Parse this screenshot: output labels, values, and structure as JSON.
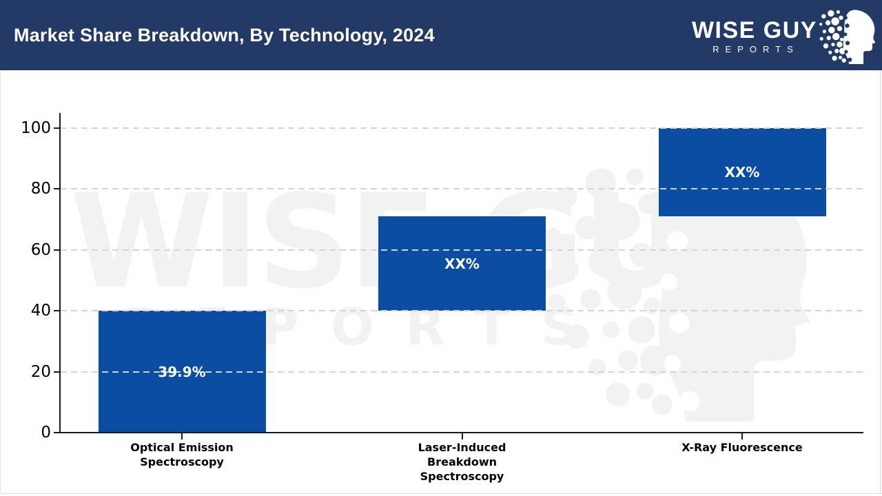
{
  "header": {
    "title": "Market Share Breakdown, By Technology, 2024",
    "logo": {
      "name": "WISE GUY",
      "sub": "REPORTS"
    }
  },
  "watermark": {
    "name": "WISE GUY",
    "sub": "REPORTS"
  },
  "chart_data": {
    "type": "bar",
    "subtype": "cumulative-floating-bars",
    "title": "Market Share Breakdown, By Technology, 2024",
    "categories": [
      "Optical Emission Spectroscopy",
      "Laser-Induced Breakdown Spectroscopy",
      "X-Ray Fluorescence"
    ],
    "category_lines": [
      [
        "Optical Emission",
        "Spectroscopy"
      ],
      [
        "Laser-Induced",
        "Breakdown",
        "Spectroscopy"
      ],
      [
        "X-Ray Fluorescence"
      ]
    ],
    "bars": [
      {
        "category": "Optical Emission Spectroscopy",
        "start": 0,
        "end": 40,
        "label": "39.9%"
      },
      {
        "category": "Laser-Induced Breakdown Spectroscopy",
        "start": 40,
        "end": 71,
        "label": "XX%"
      },
      {
        "category": "X-Ray Fluorescence",
        "start": 71,
        "end": 100,
        "label": "XX%"
      }
    ],
    "xlabel": "",
    "ylabel": "",
    "yticks": [
      0,
      20,
      40,
      60,
      80,
      100
    ],
    "ylim": [
      0,
      105
    ],
    "grid": "horizontal-dashed-above-bars",
    "legend": "none",
    "colors": {
      "bar": "#0b4da2",
      "header_background": "#233a66",
      "grid": "#d4d4d4",
      "axis": "#1a1a1a",
      "bar_label_text": "#ffffff",
      "watermark": "#f2f2f2",
      "title_text": "#ffffff"
    }
  }
}
